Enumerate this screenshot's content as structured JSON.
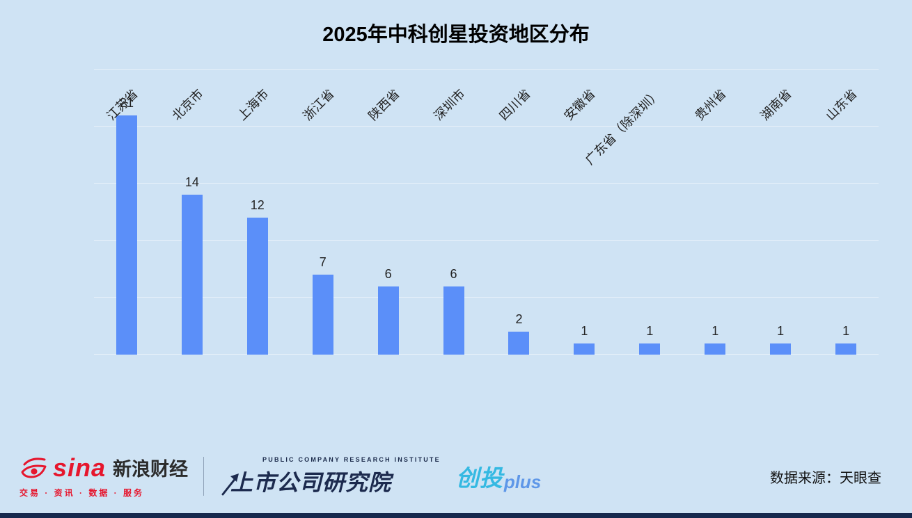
{
  "chart_data": {
    "type": "bar",
    "title": "2025年中科创星投资地区分布",
    "categories": [
      "江苏省",
      "北京市",
      "上海市",
      "浙江省",
      "陕西省",
      "深圳市",
      "四川省",
      "安徽省",
      "广东省（除深圳）",
      "贵州省",
      "湖南省",
      "山东省"
    ],
    "values": [
      21,
      14,
      12,
      7,
      6,
      6,
      2,
      1,
      1,
      1,
      1,
      1
    ],
    "xlabel": "",
    "ylabel": "",
    "ylim": [
      0,
      25
    ],
    "grid": true,
    "gridlines_every": 5,
    "legend": "none",
    "bar_color": "#5b8ff9",
    "background_color": "#cfe3f4"
  },
  "footer": {
    "sina_logo_text": "sina",
    "sina_brand": "新浪财经",
    "sina_tagline": "交易 · 资讯 · 数据 · 服务",
    "institute_en": "PUBLIC COMPANY RESEARCH INSTITUTE",
    "institute_cn": "上市公司研究院",
    "product": "创投",
    "product_suffix": "plus",
    "source": "数据来源：天眼查"
  }
}
